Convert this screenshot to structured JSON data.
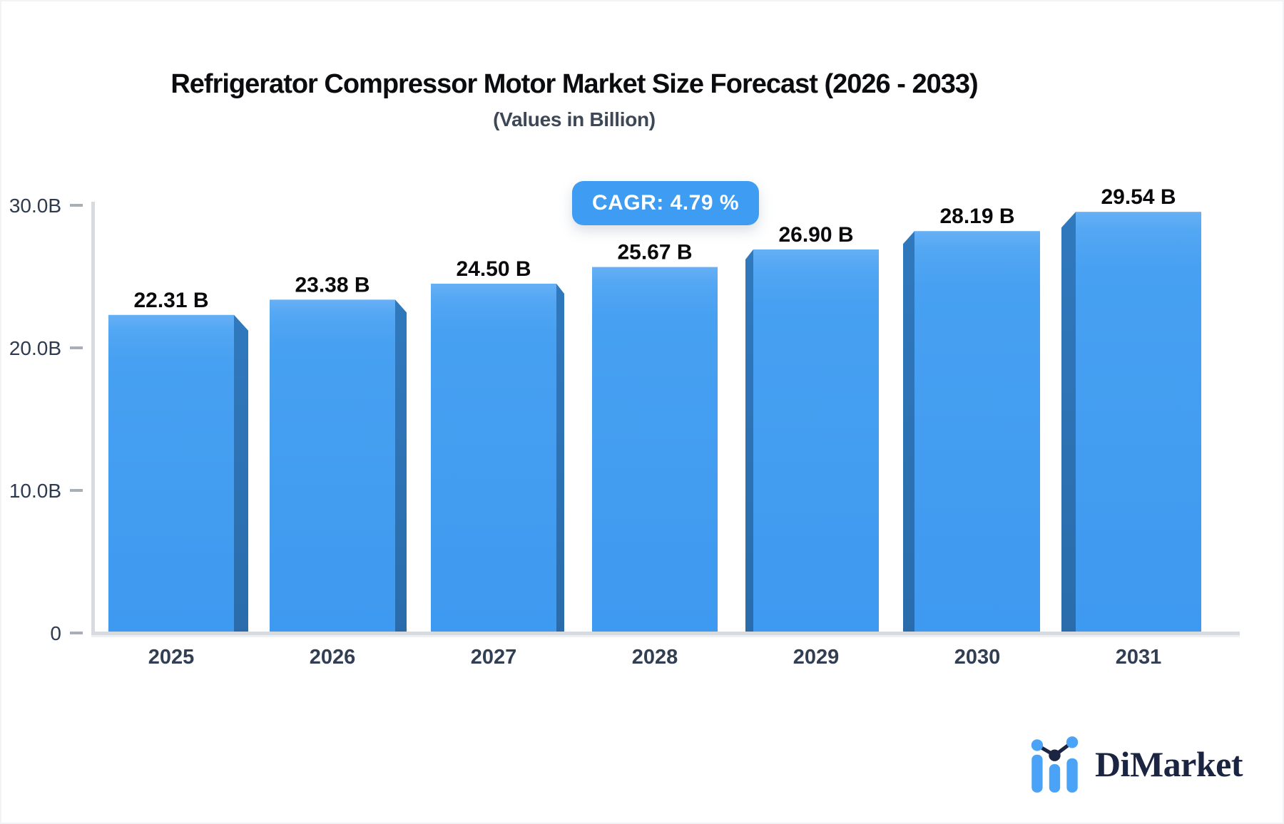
{
  "chart_data": {
    "type": "bar",
    "title": "Refrigerator Compressor Motor Market Size Forecast (2026 - 2033)",
    "subtitle": "(Values in Billion)",
    "cagr_label": "CAGR: 4.79 %",
    "categories": [
      "2025",
      "2026",
      "2027",
      "2028",
      "2029",
      "2030",
      "2031"
    ],
    "values": [
      22.31,
      23.38,
      24.5,
      25.67,
      26.9,
      28.19,
      29.54
    ],
    "value_labels": [
      "22.31 B",
      "23.38 B",
      "24.50 B",
      "25.67 B",
      "26.90 B",
      "28.19 B",
      "29.54 B"
    ],
    "unit": "B",
    "xlabel": "",
    "ylabel": "",
    "ylim": [
      0,
      30
    ],
    "yticks": [
      {
        "v": 0,
        "label": "0"
      },
      {
        "v": 10,
        "label": "10.0B"
      },
      {
        "v": 20,
        "label": "20.0B"
      },
      {
        "v": 30,
        "label": "30.0B"
      }
    ],
    "grid": false,
    "legend": false,
    "style": "3d-perspective-bars",
    "colors": {
      "bar_face": "#47A0F1",
      "bar_face_top": "#66B0F6",
      "bar_face_bottom": "#3E99F0",
      "bar_side_top": "#3079BD",
      "bar_side_bottom": "#2A6CAB",
      "badge_bg": "#3E9CF2",
      "badge_text": "#FFFFFF",
      "axis_line": "#D7DBDF",
      "axis_shadow": "#EDF0F3",
      "tick_mark": "#A7AFB9",
      "tick_label": "#2E3A4E",
      "year_label": "#323E52",
      "value_label": "#0A0A0C"
    }
  },
  "branding": {
    "name": "DiMarket",
    "navy": "#1B2440",
    "blue": "#4AA3F7"
  }
}
